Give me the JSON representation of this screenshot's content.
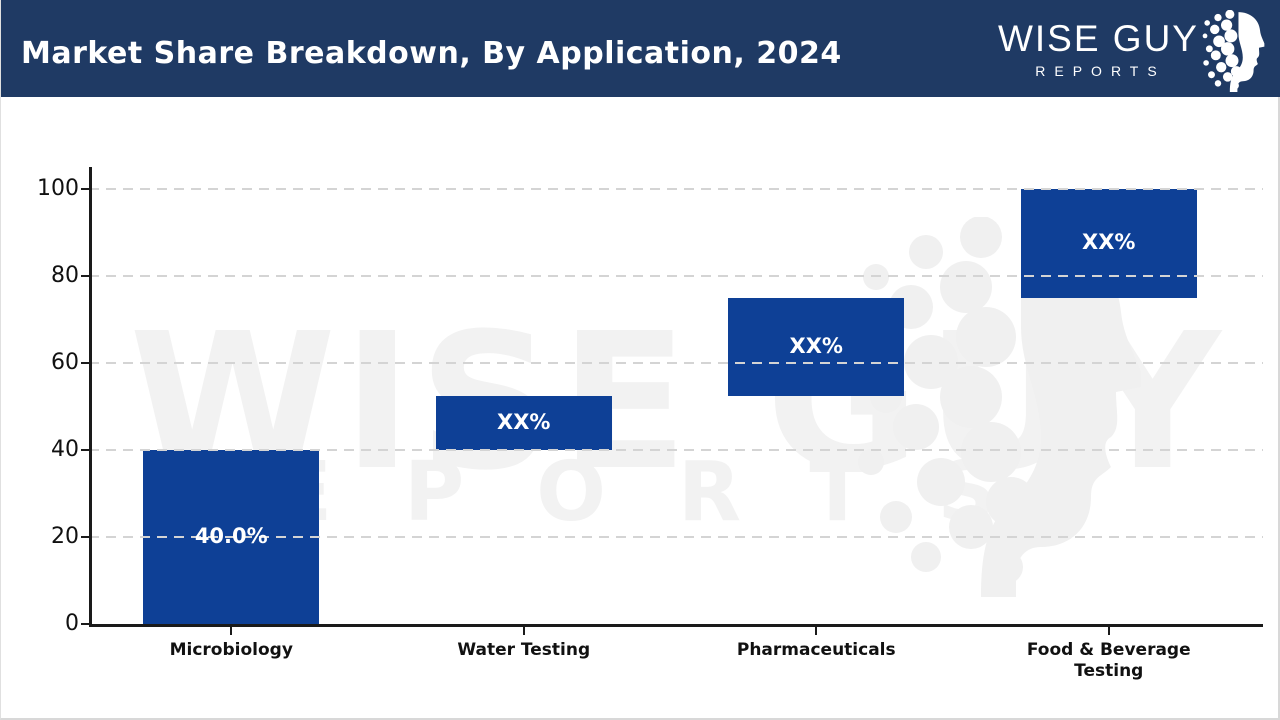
{
  "header": {
    "title": "Market Share Breakdown, By Application, 2024"
  },
  "brand": {
    "name": "WISE GUY",
    "subtitle": "REPORTS"
  },
  "watermark": {
    "line1": "WISE GUY",
    "line2": "REPORTS"
  },
  "colors": {
    "header_bg": "#1f3a64",
    "bar_blue": "#0e4096",
    "bar_label": "#ffffff",
    "gridline": "#d4d4d4",
    "axis": "#1a1a1a",
    "watermark": "#f2f2f2"
  },
  "chart_data": {
    "type": "bar",
    "subtype": "waterfall",
    "title": "Market Share Breakdown, By Application, 2024",
    "categories": [
      "Microbiology",
      "Water Testing",
      "Pharmaceuticals",
      "Food & Beverage Testing"
    ],
    "segments": [
      {
        "category": "Microbiology",
        "start": 0,
        "end": 40,
        "label": "40.0%"
      },
      {
        "category": "Water Testing",
        "start": 40,
        "end": 52.5,
        "label": "XX%"
      },
      {
        "category": "Pharmaceuticals",
        "start": 52.5,
        "end": 75,
        "label": "XX%"
      },
      {
        "category": "Food & Beverage Testing",
        "start": 75,
        "end": 100,
        "label": "XX%"
      }
    ],
    "xlabel": "",
    "ylabel": "",
    "y_ticks": [
      0,
      20,
      40,
      60,
      80,
      100
    ],
    "ylim": [
      0,
      105
    ],
    "grid": "horizontal-dashed",
    "legend": "none"
  }
}
